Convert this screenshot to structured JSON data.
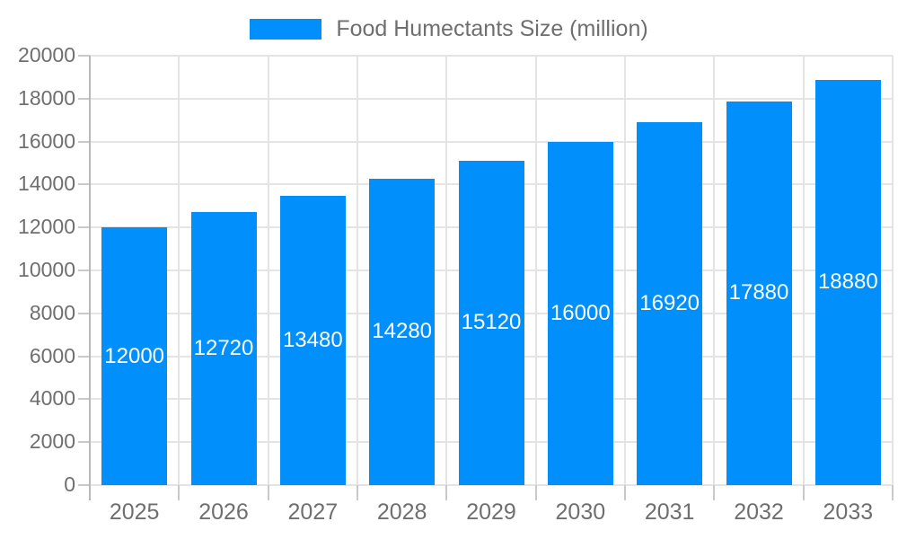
{
  "chart_data": {
    "type": "bar",
    "title": "Food Humectants Size (million)",
    "categories": [
      "2025",
      "2026",
      "2027",
      "2028",
      "2029",
      "2030",
      "2031",
      "2032",
      "2033"
    ],
    "series": [
      {
        "name": "Food Humectants Size (million)",
        "values": [
          12000,
          12720,
          13480,
          14280,
          15120,
          16000,
          16920,
          17880,
          18880
        ],
        "color": "#008FFB"
      }
    ],
    "bar_value_labels": [
      "12000",
      "12720",
      "13480",
      "14280",
      "15120",
      "16000",
      "16920",
      "17880",
      "18880"
    ],
    "xlabel": "",
    "ylabel": "",
    "ylim": [
      0,
      20000
    ],
    "yticks": [
      0,
      2000,
      4000,
      6000,
      8000,
      10000,
      12000,
      14000,
      16000,
      18000,
      20000
    ],
    "grid": true,
    "legend_position": "top",
    "colors": {
      "bar": "#008FFB",
      "bar_label_text": "#FFFFFF",
      "axis_text": "#6F6F6F",
      "grid_line": "#E4E4E4",
      "axis_line": "#B8B8B8",
      "tick_mark": "#C9C9C9",
      "background": "#FFFFFF"
    }
  }
}
